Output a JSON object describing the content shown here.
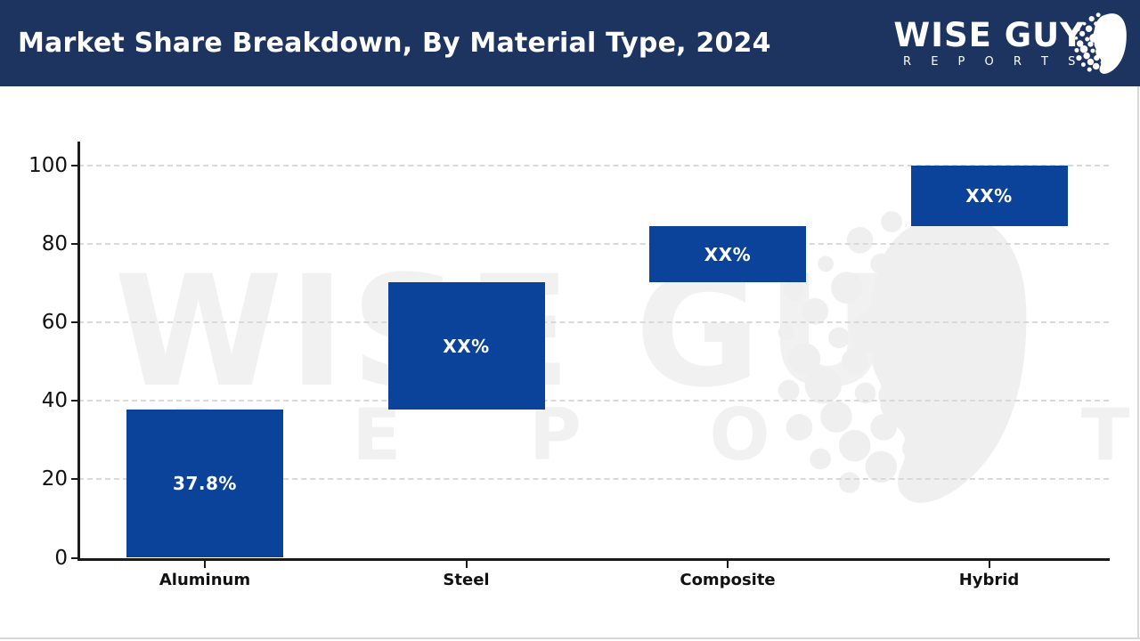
{
  "header": {
    "title": "Market Share Breakdown, By Material Type, 2024",
    "logo": {
      "line1": "WISE GUY",
      "line2": "R E P O R T S"
    }
  },
  "watermark": {
    "line1": "WISE GUY",
    "line2": "R E P O R T S"
  },
  "colors": {
    "header_bg": "#1e3460",
    "bar": "#0a4399",
    "bar_label": "#ffffff",
    "grid": "#d9d9d9",
    "axis": "#1a1a1a",
    "watermark": "#f1f1f1",
    "title_text": "#ffffff"
  },
  "chart_data": {
    "type": "bar",
    "subtype": "floating-waterfall",
    "title": "Market Share Breakdown, By Material Type, 2024",
    "categories": [
      "Aluminum",
      "Steel",
      "Composite",
      "Hybrid"
    ],
    "segments": [
      [
        0,
        37.8
      ],
      [
        37.8,
        70.2
      ],
      [
        70.2,
        84.5
      ],
      [
        84.5,
        100
      ]
    ],
    "segment_sizes": [
      37.8,
      32.4,
      14.3,
      15.5
    ],
    "cumulative": [
      37.8,
      70.2,
      84.5,
      100
    ],
    "bar_labels": [
      "37.8%",
      "XX%",
      "XX%",
      "XX%"
    ],
    "xlabel": "",
    "ylabel": "",
    "yticks": [
      0,
      20,
      40,
      60,
      80,
      100
    ],
    "ylim": [
      0,
      106
    ],
    "grid": "horizontal-dashed",
    "legend": "none",
    "bar_color": "#0a4399"
  }
}
